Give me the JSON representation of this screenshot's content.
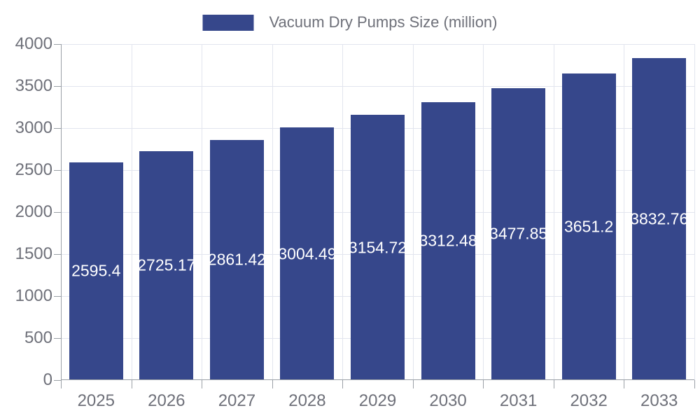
{
  "legend": {
    "label": "Vacuum Dry Pumps Size (million)"
  },
  "chart_data": {
    "type": "bar",
    "title": "Vacuum Dry Pumps Size (million)",
    "categories": [
      "2025",
      "2026",
      "2027",
      "2028",
      "2029",
      "2030",
      "2031",
      "2032",
      "2033"
    ],
    "values": [
      2595.4,
      2725.17,
      2861.42,
      3004.49,
      3154.72,
      3312.48,
      3477.85,
      3651.2,
      3832.76
    ],
    "value_labels": [
      "2595.4",
      "2725.17",
      "2861.42",
      "3004.49",
      "3154.72",
      "3312.48",
      "3477.85",
      "3651.2",
      "3832.76"
    ],
    "yticks": [
      "0",
      "500",
      "1000",
      "1500",
      "2000",
      "2500",
      "3000",
      "3500",
      "4000"
    ],
    "ylim": [
      0,
      4000
    ],
    "ytick_step": 500,
    "xlabel": "",
    "ylabel": "",
    "grid": true,
    "legend_position": "top",
    "bar_color": "#36478b",
    "value_label_color": "#ffffff",
    "axis_text_color": "#6e7079",
    "grid_color": "#e2e5ee",
    "axis_line_color": "#9aa0a6"
  }
}
